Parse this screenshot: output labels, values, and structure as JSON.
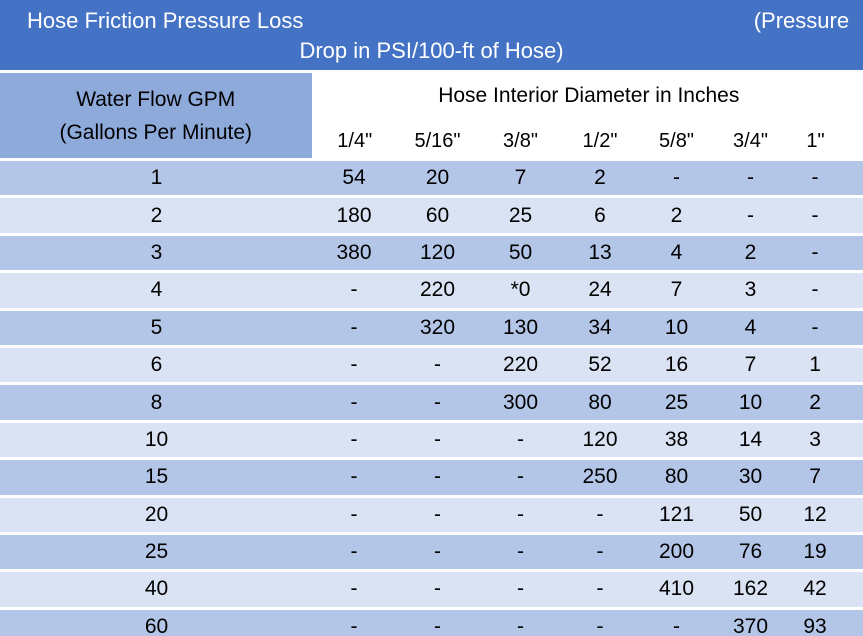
{
  "title": {
    "line1_left": "Hose Friction Pressure Loss",
    "line1_right": "(Pressure",
    "line2": "Drop in PSI/100-ft of Hose)",
    "full": "Hose Friction Pressure Loss (Pressure Drop in PSI/100-ft of Hose)"
  },
  "header": {
    "row_header_title": "Water Flow GPM",
    "row_header_subtitle": "(Gallons Per Minute)",
    "col_group_title": "Hose Interior Diameter in Inches",
    "columns": [
      "1/4\"",
      "5/16\"",
      "3/8\"",
      "1/2\"",
      "5/8\"",
      "3/4\"",
      "1\""
    ]
  },
  "rows": [
    {
      "gpm": "1",
      "values": [
        "54",
        "20",
        "7",
        "2",
        "-",
        "-",
        "-"
      ]
    },
    {
      "gpm": "2",
      "values": [
        "180",
        "60",
        "25",
        "6",
        "2",
        "-",
        "-"
      ]
    },
    {
      "gpm": "3",
      "values": [
        "380",
        "120",
        "50",
        "13",
        "4",
        "2",
        "-"
      ]
    },
    {
      "gpm": "4",
      "values": [
        "-",
        "220",
        "*0",
        "24",
        "7",
        "3",
        "-"
      ]
    },
    {
      "gpm": "5",
      "values": [
        "-",
        "320",
        "130",
        "34",
        "10",
        "4",
        "-"
      ]
    },
    {
      "gpm": "6",
      "values": [
        "-",
        "-",
        "220",
        "52",
        "16",
        "7",
        "1"
      ]
    },
    {
      "gpm": "8",
      "values": [
        "-",
        "-",
        "300",
        "80",
        "25",
        "10",
        "2"
      ]
    },
    {
      "gpm": "10",
      "values": [
        "-",
        "-",
        "-",
        "120",
        "38",
        "14",
        "3"
      ]
    },
    {
      "gpm": "15",
      "values": [
        "-",
        "-",
        "-",
        "250",
        "80",
        "30",
        "7"
      ]
    },
    {
      "gpm": "20",
      "values": [
        "-",
        "-",
        "-",
        "-",
        "121",
        "50",
        "12"
      ]
    },
    {
      "gpm": "25",
      "values": [
        "-",
        "-",
        "-",
        "-",
        "200",
        "76",
        "19"
      ]
    },
    {
      "gpm": "40",
      "values": [
        "-",
        "-",
        "-",
        "-",
        "410",
        "162",
        "42"
      ]
    },
    {
      "gpm": "60",
      "values": [
        "-",
        "-",
        "-",
        "-",
        "-",
        "370",
        "93"
      ]
    }
  ],
  "colors": {
    "title_bg": "#4472C4",
    "title_text": "#FFFFFF",
    "row_header_bg": "#8EAADB",
    "row_alt1": "#B4C6E7",
    "row_alt2": "#DAE3F3",
    "separator": "#FFFFFF",
    "text": "#000000"
  },
  "chart_data": {
    "type": "table",
    "title": "Hose Friction Pressure Loss (Pressure Drop in PSI/100-ft of Hose)",
    "row_axis_label": "Water Flow GPM (Gallons Per Minute)",
    "col_axis_label": "Hose Interior Diameter in Inches",
    "columns": [
      "1/4\"",
      "5/16\"",
      "3/8\"",
      "1/2\"",
      "5/8\"",
      "3/4\"",
      "1\""
    ],
    "rows_gpm": [
      1,
      2,
      3,
      4,
      5,
      6,
      8,
      10,
      15,
      20,
      25,
      40,
      60
    ],
    "values": [
      [
        "54",
        "20",
        "7",
        "2",
        "-",
        "-",
        "-"
      ],
      [
        "180",
        "60",
        "25",
        "6",
        "2",
        "-",
        "-"
      ],
      [
        "380",
        "120",
        "50",
        "13",
        "4",
        "2",
        "-"
      ],
      [
        "-",
        "220",
        "*0",
        "24",
        "7",
        "3",
        "-"
      ],
      [
        "-",
        "320",
        "130",
        "34",
        "10",
        "4",
        "-"
      ],
      [
        "-",
        "-",
        "220",
        "52",
        "16",
        "7",
        "1"
      ],
      [
        "-",
        "-",
        "300",
        "80",
        "25",
        "10",
        "2"
      ],
      [
        "-",
        "-",
        "-",
        "120",
        "38",
        "14",
        "3"
      ],
      [
        "-",
        "-",
        "-",
        "250",
        "80",
        "30",
        "7"
      ],
      [
        "-",
        "-",
        "-",
        "-",
        "121",
        "50",
        "12"
      ],
      [
        "-",
        "-",
        "-",
        "-",
        "200",
        "76",
        "19"
      ],
      [
        "-",
        "-",
        "-",
        "-",
        "410",
        "162",
        "42"
      ],
      [
        "-",
        "-",
        "-",
        "-",
        "-",
        "370",
        "93"
      ]
    ],
    "missing_marker": "-"
  }
}
